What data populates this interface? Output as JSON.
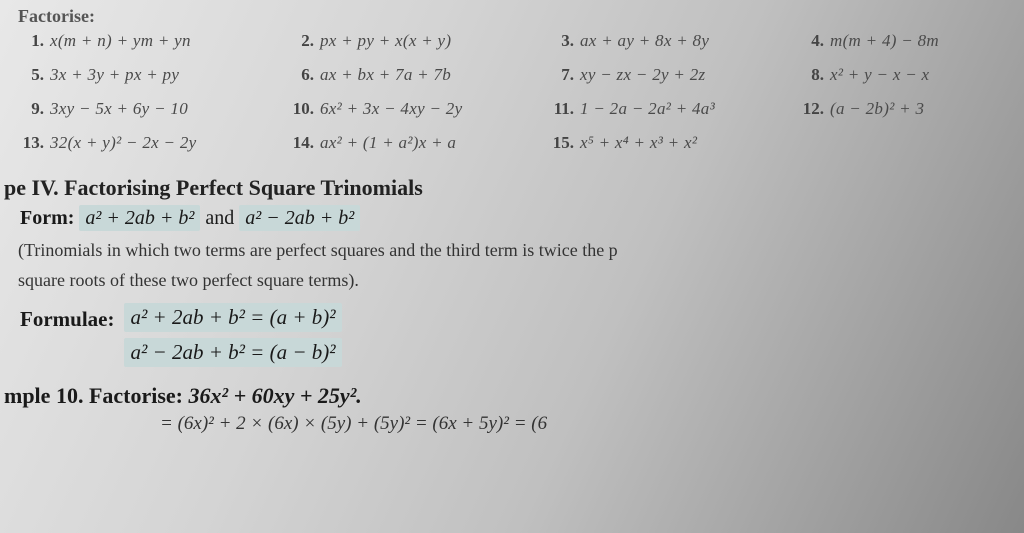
{
  "factorise_heading": "Factorise:",
  "problems": [
    {
      "n": "1.",
      "e": "x(m + n) + ym + yn"
    },
    {
      "n": "2.",
      "e": "px + py + x(x + y)"
    },
    {
      "n": "3.",
      "e": "ax + ay + 8x + 8y"
    },
    {
      "n": "4.",
      "e": "m(m + 4) − 8m"
    },
    {
      "n": "5.",
      "e": "3x + 3y + px + py"
    },
    {
      "n": "6.",
      "e": "ax + bx + 7a + 7b"
    },
    {
      "n": "7.",
      "e": "xy − zx − 2y + 2z"
    },
    {
      "n": "8.",
      "e": "x² + y − x − x"
    },
    {
      "n": "9.",
      "e": "3xy − 5x + 6y − 10"
    },
    {
      "n": "10.",
      "e": "6x² + 3x − 4xy − 2y"
    },
    {
      "n": "11.",
      "e": "1 − 2a − 2a² + 4a³"
    },
    {
      "n": "12.",
      "e": "(a − 2b)² + 3"
    },
    {
      "n": "13.",
      "e": "32(x + y)² − 2x − 2y"
    },
    {
      "n": "14.",
      "e": "ax² + (1 + a²)x + a"
    },
    {
      "n": "15.",
      "e": "x⁵ + x⁴ + x³ + x²"
    }
  ],
  "section_heading": "pe IV. Factorising Perfect Square Trinomials",
  "form_label": "Form:",
  "form_expr1": "a² + 2ab + b²",
  "form_and": "and",
  "form_expr2": "a² − 2ab + b²",
  "trinomial_text1": "(Trinomials in which two terms are perfect squares and the third term is twice the p",
  "trinomial_text2": "square roots of these two perfect square terms).",
  "formulae_label": "Formulae:",
  "formula1": "a² + 2ab + b² = (a + b)²",
  "formula2": "a² − 2ab + b² = (a − b)²",
  "example_lead": "mple 10. Factorise:",
  "example_expr": "36x² + 60xy + 25y².",
  "example_cont": "= (6x)² + 2 × (6x) × (5y) + (5y)² = (6x + 5y)² = (6"
}
